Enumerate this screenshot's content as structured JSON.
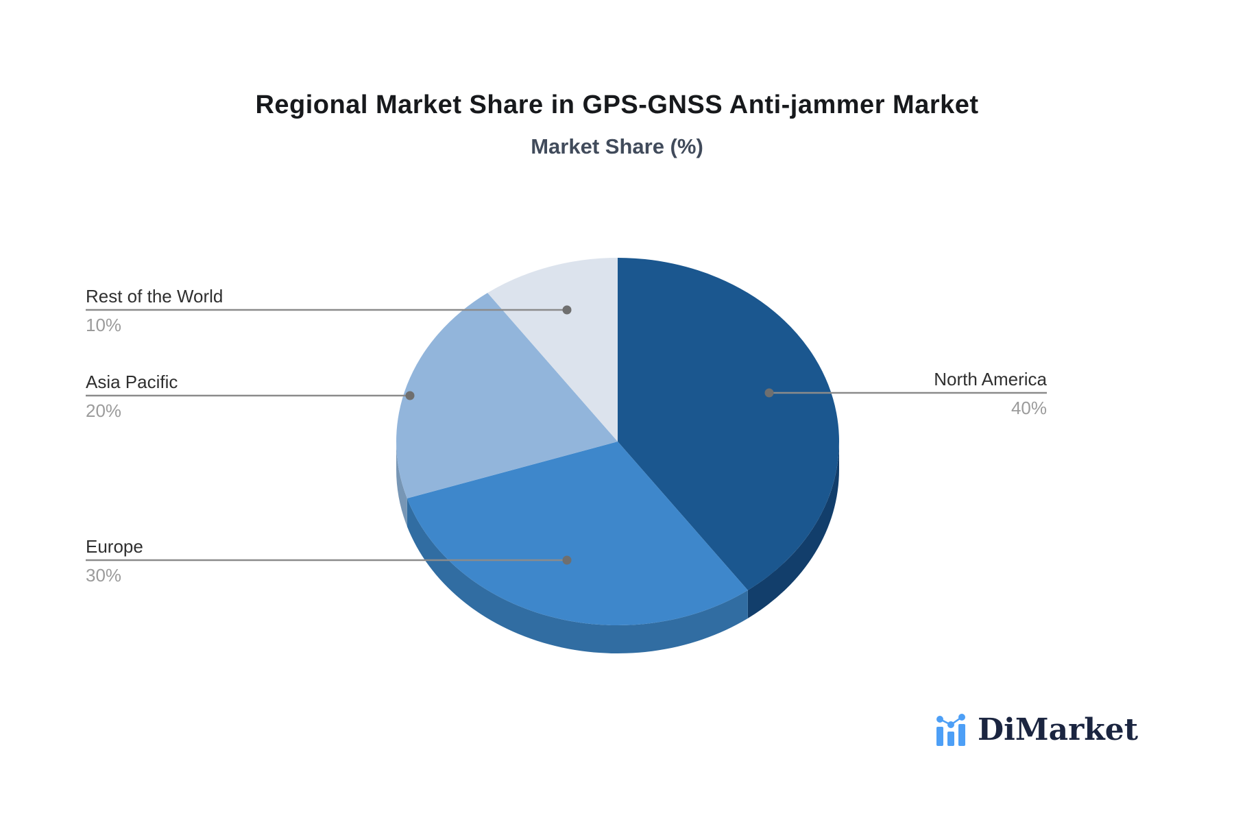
{
  "page": {
    "background": "#ffffff"
  },
  "chart": {
    "title": "Regional Market Share in GPS-GNSS Anti-jammer Market",
    "subtitle": "Market Share (%)"
  },
  "chart_data": {
    "type": "pie",
    "title": "Regional Market Share in GPS-GNSS Anti-jammer Market",
    "subtitle": "Market Share (%)",
    "unit": "%",
    "effect": "3d",
    "start_angle_deg": 0,
    "direction": "clockwise",
    "legend": "none",
    "leader_line_color": "#8b8b8b",
    "leader_dot_color": "#6f6f6f",
    "slices": [
      {
        "label": "North America",
        "value": 40,
        "percent_label": "40%",
        "color": "#1b578f",
        "side_color": "#123e6b",
        "label_side": "right"
      },
      {
        "label": "Europe",
        "value": 30,
        "percent_label": "30%",
        "color": "#3e87cb",
        "side_color": "#316da2",
        "label_side": "left"
      },
      {
        "label": "Asia Pacific",
        "value": 20,
        "percent_label": "20%",
        "color": "#92b5db",
        "side_color": "#7796b5",
        "label_side": "left"
      },
      {
        "label": "Rest of the World",
        "value": 10,
        "percent_label": "10%",
        "color": "#dce3ed",
        "side_color": "#b9c4d4",
        "label_side": "left"
      }
    ]
  },
  "logo": {
    "text": "DiMarket",
    "icon": "bar-line-chart-icon",
    "icon_color": "#4d9ff6",
    "text_color": "#1b2540"
  }
}
